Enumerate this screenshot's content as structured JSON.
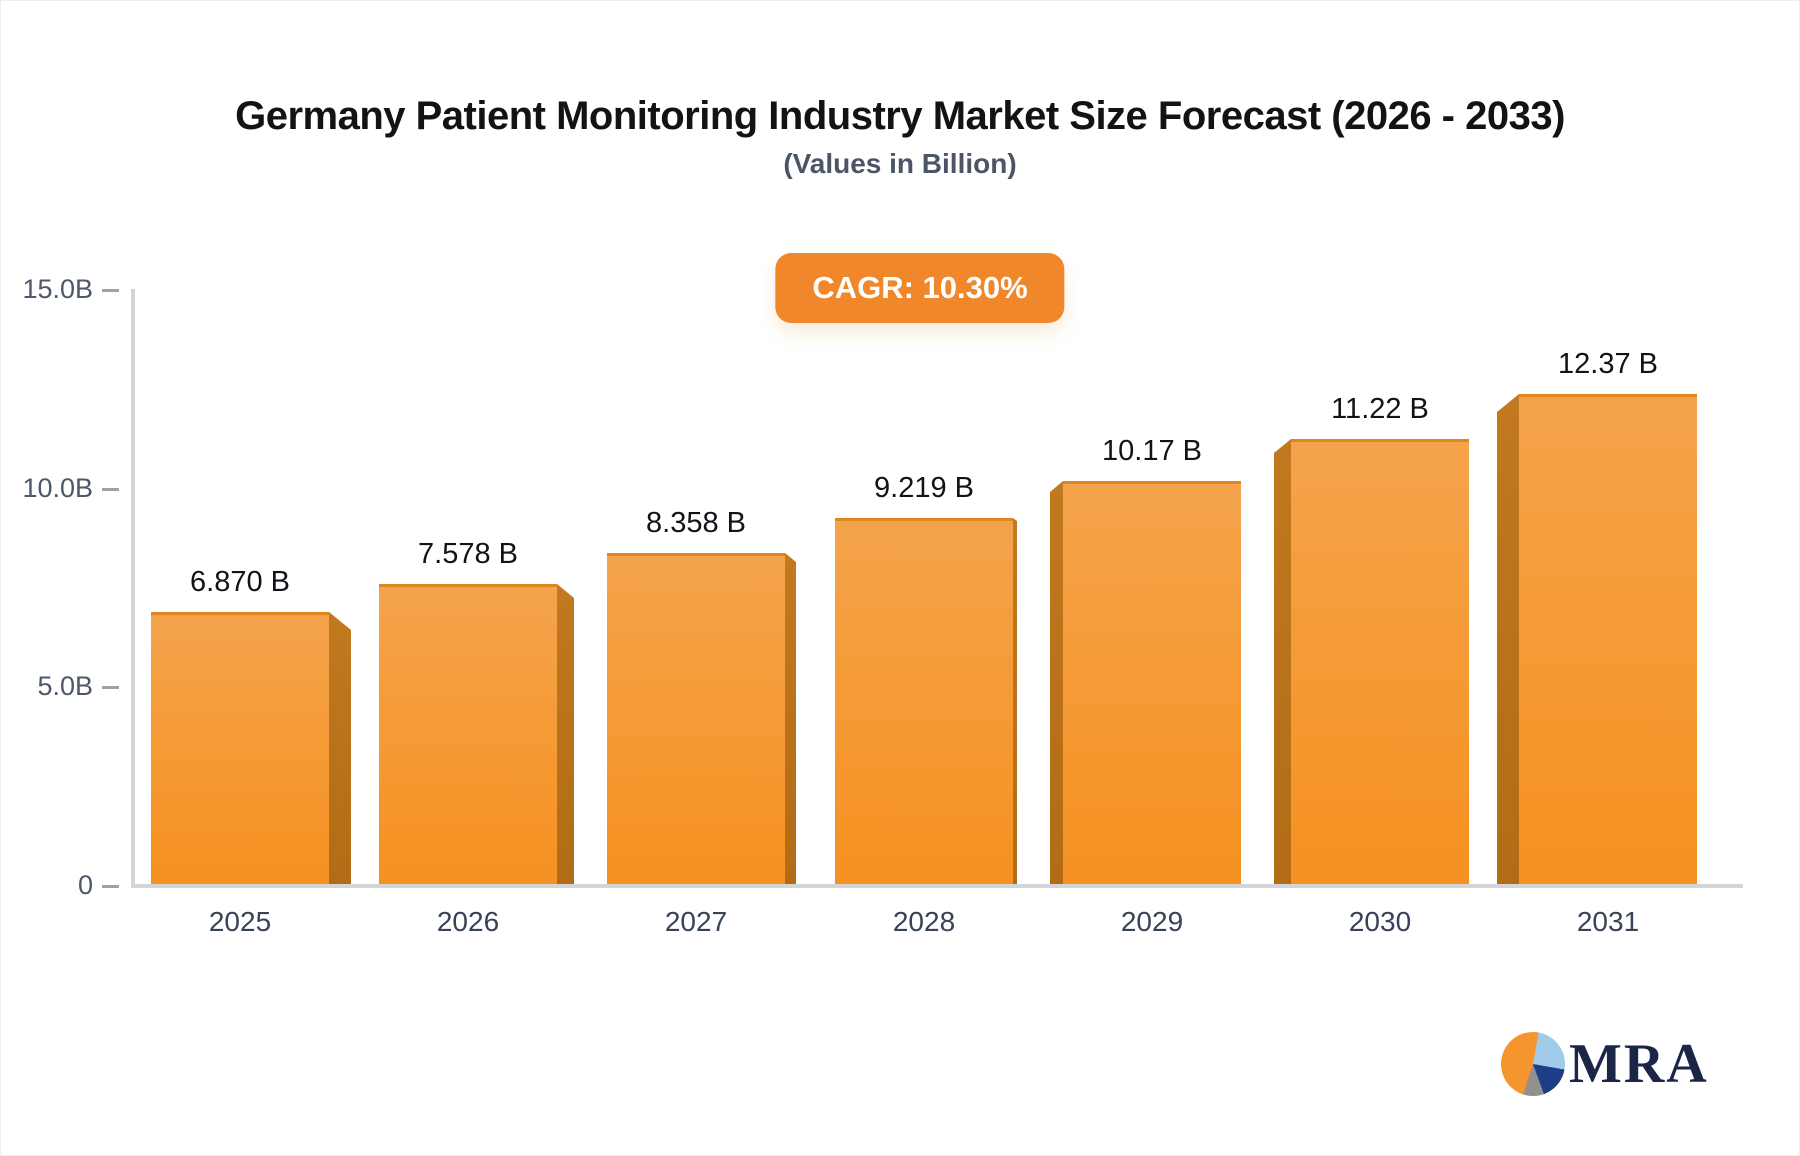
{
  "header": {
    "title": "Germany Patient Monitoring Industry Market Size Forecast (2026 - 2033)",
    "subtitle": "(Values in Billion)",
    "cagr_badge": "CAGR: 10.30%"
  },
  "chart_data": {
    "type": "bar",
    "title": "Germany Patient Monitoring Industry Market Size Forecast (2026 - 2033)",
    "subtitle": "(Values in Billion)",
    "cagr_pct": 10.3,
    "categories": [
      "2025",
      "2026",
      "2027",
      "2028",
      "2029",
      "2030",
      "2031"
    ],
    "values": [
      6.87,
      7.578,
      8.358,
      9.219,
      10.17,
      11.22,
      12.37
    ],
    "value_labels": [
      "6.870 B",
      "7.578 B",
      "8.358 B",
      "9.219 B",
      "10.17 B",
      "11.22 B",
      "12.37 B"
    ],
    "y_ticks": [
      "15.0B",
      "10.0B",
      "5.0B",
      "0"
    ],
    "ylim": [
      0,
      15
    ],
    "xlabel": "",
    "ylabel": "",
    "grid": false,
    "legend": false,
    "bar_color": "#F6951F",
    "bar_side_color": "#B9721C"
  },
  "logo": {
    "text": "MRA"
  },
  "colors": {
    "accent_orange": "#F0882B",
    "axis_gray": "#D2D5DA",
    "label_dark": "#101418"
  }
}
